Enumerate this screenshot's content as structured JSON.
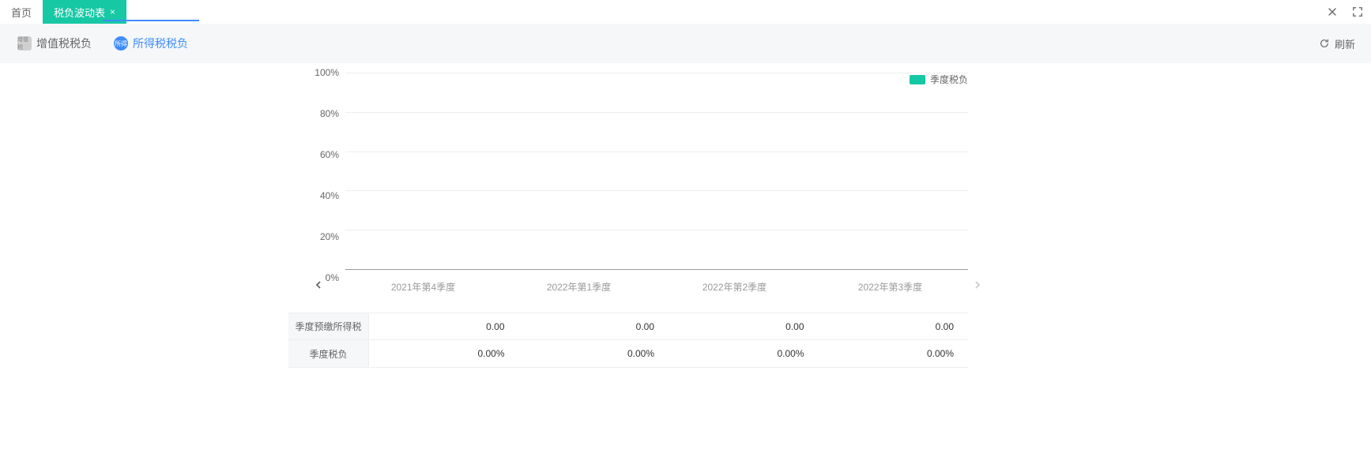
{
  "topTabs": {
    "home": "首页",
    "active": {
      "label": "税负波动表"
    }
  },
  "subTabs": {
    "vat": {
      "label": "增值税税负",
      "iconText": "增值税"
    },
    "income": {
      "label": "所得税税负",
      "iconText": "所得"
    }
  },
  "refreshLabel": "刷新",
  "chart": {
    "type": "bar",
    "legend": {
      "label": "季度税负",
      "color": "#17c8a4"
    },
    "ylim": [
      0,
      100
    ],
    "yticks": [
      {
        "pct": 0,
        "label": "0%"
      },
      {
        "pct": 20,
        "label": "20%"
      },
      {
        "pct": 40,
        "label": "40%"
      },
      {
        "pct": 60,
        "label": "60%"
      },
      {
        "pct": 80,
        "label": "80%"
      },
      {
        "pct": 100,
        "label": "100%"
      }
    ],
    "grid_color": "#eeeeee",
    "axis_color": "#999999",
    "label_color": "#999999",
    "tick_color": "#666666",
    "background_color": "#ffffff",
    "xcategories": [
      "2021年第4季度",
      "2022年第1季度",
      "2022年第2季度",
      "2022年第3季度"
    ],
    "series_values": [
      0,
      0,
      0,
      0
    ]
  },
  "table": {
    "rows": [
      {
        "head": "季度预缴所得税",
        "cells": [
          "0.00",
          "0.00",
          "0.00",
          "0.00"
        ]
      },
      {
        "head": "季度税负",
        "cells": [
          "0.00%",
          "0.00%",
          "0.00%",
          "0.00%"
        ]
      }
    ],
    "head_bg": "#f5f7f9",
    "border_color": "#eeeeee"
  }
}
